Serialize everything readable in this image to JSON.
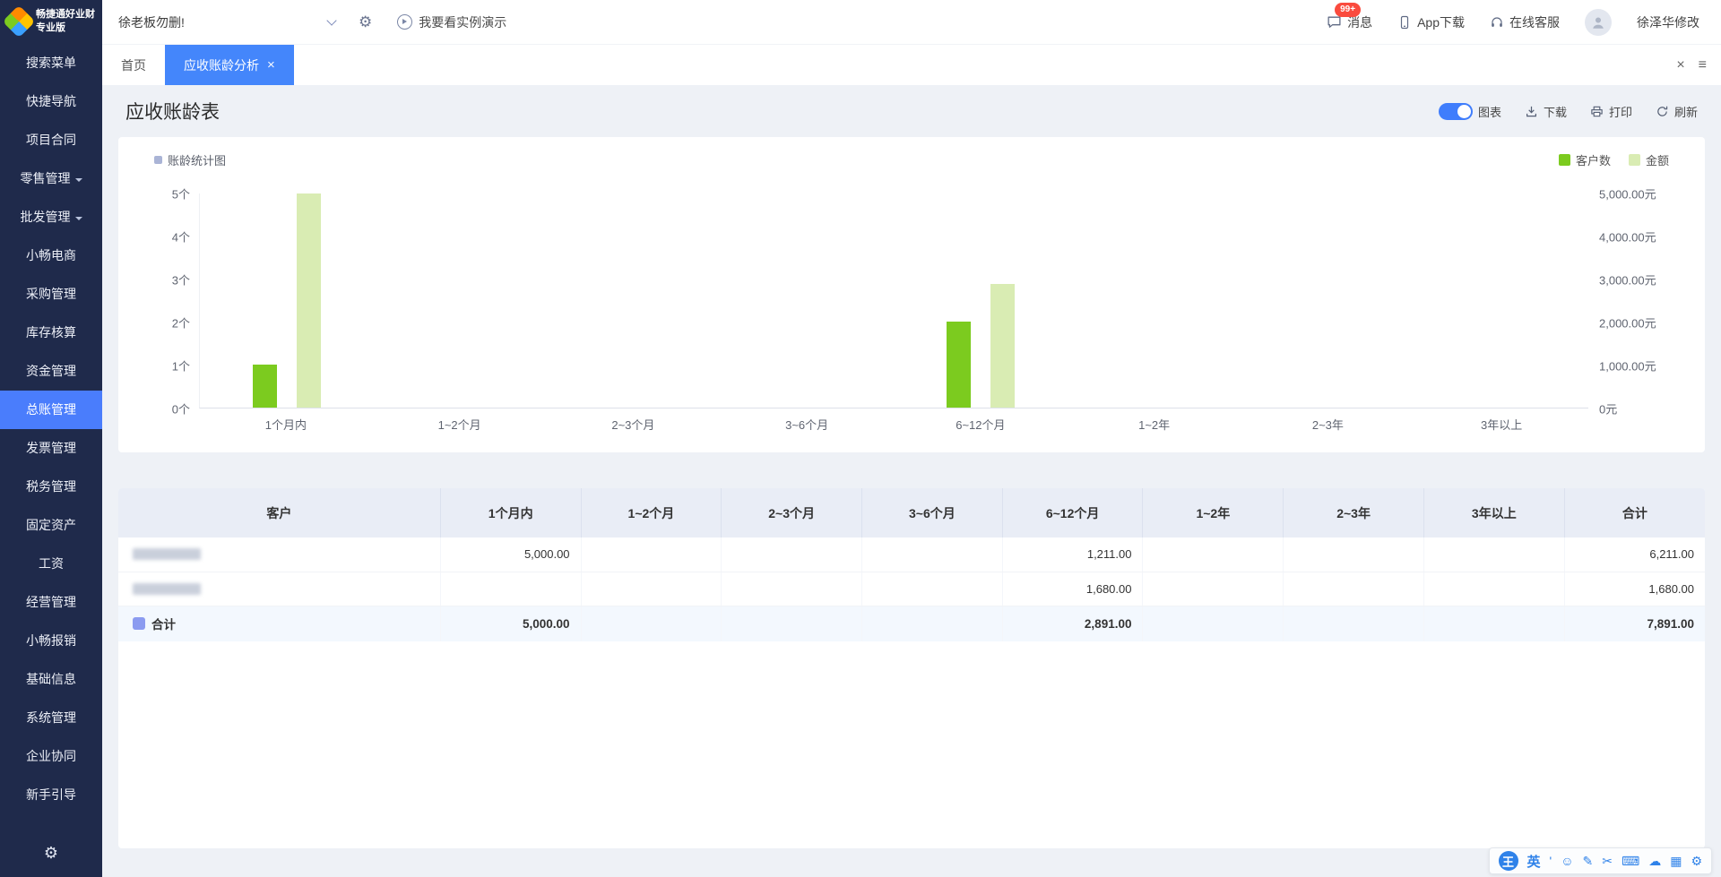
{
  "app": {
    "logo_line1": "畅捷通好业财",
    "logo_line2": "专业版"
  },
  "icons": {
    "settings": "⚙",
    "close": "×",
    "menu": "≡"
  },
  "topbar": {
    "org_selector": "徐老板勿删!",
    "demo_label": "我要看实例演示",
    "messages_label": "消息",
    "messages_badge": "99+",
    "app_download_label": "App下载",
    "online_service_label": "在线客服",
    "username": "徐泽华修改"
  },
  "tabbar": {
    "tabs": [
      {
        "label": "首页",
        "active": false,
        "closable": false
      },
      {
        "label": "应收账龄分析",
        "active": true,
        "closable": true
      }
    ]
  },
  "sidebar": {
    "items": [
      {
        "label": "搜索菜单"
      },
      {
        "label": "快捷导航"
      },
      {
        "label": "项目合同"
      },
      {
        "label": "零售管理",
        "expandable": true
      },
      {
        "label": "批发管理",
        "expandable": true
      },
      {
        "label": "小畅电商"
      },
      {
        "label": "采购管理"
      },
      {
        "label": "库存核算"
      },
      {
        "label": "资金管理"
      },
      {
        "label": "总账管理",
        "active": true
      },
      {
        "label": "发票管理"
      },
      {
        "label": "税务管理"
      },
      {
        "label": "固定资产"
      },
      {
        "label": "工资"
      },
      {
        "label": "经营管理"
      },
      {
        "label": "小畅报销"
      },
      {
        "label": "基础信息"
      },
      {
        "label": "系统管理"
      },
      {
        "label": "企业协同"
      },
      {
        "label": "新手引导"
      }
    ]
  },
  "page": {
    "title": "应收账龄表",
    "toggle_label": "图表",
    "download_label": "下载",
    "print_label": "打印",
    "refresh_label": "刷新"
  },
  "chart_data": {
    "type": "bar",
    "title": "账龄统计图",
    "categories": [
      "1个月内",
      "1~2个月",
      "2~3个月",
      "3~6个月",
      "6~12个月",
      "1~2年",
      "2~3年",
      "3年以上"
    ],
    "series": [
      {
        "name": "客户数",
        "color": "#7ccb1f",
        "axis": "left",
        "values": [
          1,
          0,
          0,
          0,
          2,
          0,
          0,
          0
        ]
      },
      {
        "name": "金额",
        "color": "#d9ecb3",
        "axis": "right",
        "values": [
          5000,
          0,
          0,
          0,
          2891,
          0,
          0,
          0
        ]
      }
    ],
    "left_axis": {
      "ticks": [
        "5个",
        "4个",
        "3个",
        "2个",
        "1个",
        "0个"
      ],
      "max": 5,
      "min": 0
    },
    "right_axis": {
      "ticks": [
        "5,000.00元",
        "4,000.00元",
        "3,000.00元",
        "2,000.00元",
        "1,000.00元",
        "0元"
      ],
      "max": 5000,
      "min": 0
    },
    "legend_position": "top-right",
    "grid": false
  },
  "table": {
    "headers": [
      "客户",
      "1个月内",
      "1~2个月",
      "2~3个月",
      "3~6个月",
      "6~12个月",
      "1~2年",
      "2~3年",
      "3年以上",
      "合计"
    ],
    "rows": [
      {
        "customer_redacted": true,
        "values": [
          "5,000.00",
          "",
          "",
          "",
          "1,211.00",
          "",
          "",
          "",
          "6,211.00"
        ]
      },
      {
        "customer_redacted": true,
        "values": [
          "",
          "",
          "",
          "",
          "1,680.00",
          "",
          "",
          "",
          "1,680.00"
        ]
      }
    ],
    "total": {
      "label": "合计",
      "values": [
        "5,000.00",
        "",
        "",
        "",
        "2,891.00",
        "",
        "",
        "",
        "7,891.00"
      ]
    }
  },
  "ime": {
    "logo": "王",
    "mode": "英",
    "tools": [
      {
        "name": "mic-icon",
        "glyph": "'"
      },
      {
        "name": "emoji-icon",
        "glyph": "☺"
      },
      {
        "name": "handwriting-icon",
        "glyph": "✎"
      },
      {
        "name": "screenshot-icon",
        "glyph": "✂"
      },
      {
        "name": "keyboard-icon",
        "glyph": "⌨"
      },
      {
        "name": "cloud-icon",
        "glyph": "☁"
      },
      {
        "name": "skin-icon",
        "glyph": "▦"
      },
      {
        "name": "settings-icon",
        "glyph": "⚙"
      }
    ]
  },
  "colors": {
    "accent_blue": "#4a7dfc",
    "sidebar_bg": "#1f2a4b",
    "tab_active": "#4486fb",
    "bar_green": "#7ccb1f",
    "bar_light_green": "#d9ecb3",
    "badge_red": "#fa4b3e",
    "table_header_bg": "#e9edf6",
    "total_row_bg": "#f3f8fe"
  }
}
